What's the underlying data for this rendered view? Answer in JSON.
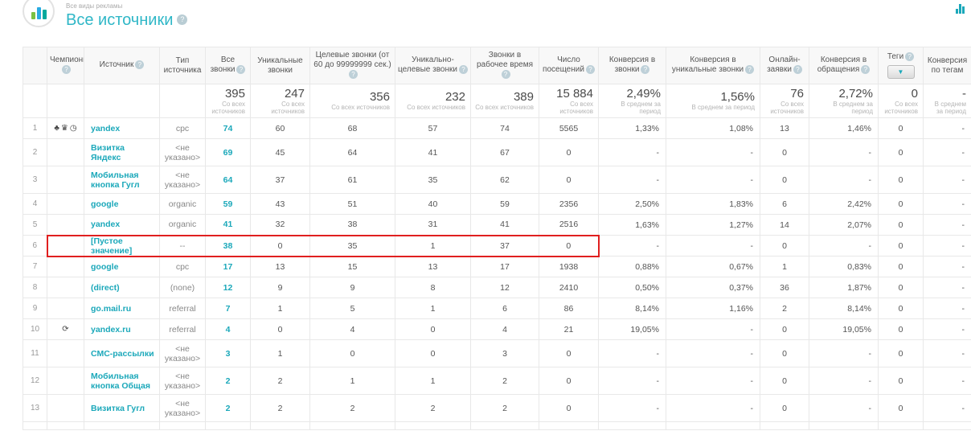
{
  "colors": {
    "accent": "#1ba8ba",
    "title": "#2fb7c7",
    "highlight": "#e01f1f"
  },
  "header": {
    "breadcrumb": "Все виды рекламы",
    "title": "Все источники"
  },
  "table": {
    "columns": [
      {
        "key": "champions",
        "label": "Чемпионы",
        "help": true
      },
      {
        "key": "source",
        "label": "Источник",
        "help": true
      },
      {
        "key": "source_type",
        "label": "Тип источника",
        "help": false
      },
      {
        "key": "all_calls",
        "label": "Все звонки",
        "help": true
      },
      {
        "key": "unique_calls",
        "label": "Уникальные звонки",
        "help": false
      },
      {
        "key": "target_calls",
        "label": "Целевые звонки (от 60 до 99999999 сек.)",
        "help": true
      },
      {
        "key": "unique_target_calls",
        "label": "Уникально-целевые звонки",
        "help": true
      },
      {
        "key": "worktime_calls",
        "label": "Звонки в рабочее время",
        "help": true
      },
      {
        "key": "visits",
        "label": "Число посещений",
        "help": true
      },
      {
        "key": "conv_calls",
        "label": "Конверсия в звонки",
        "help": true
      },
      {
        "key": "conv_unique_calls",
        "label": "Конверсия в уникальные звонки",
        "help": true
      },
      {
        "key": "online_requests",
        "label": "Онлайн-заявки",
        "help": true
      },
      {
        "key": "conv_requests",
        "label": "Конверсия в обращения",
        "help": true
      },
      {
        "key": "tags",
        "label": "Теги",
        "help": true,
        "dropdown": true
      },
      {
        "key": "conv_tags",
        "label": "Конверсия по тегам",
        "help": false
      }
    ],
    "totals": [
      {
        "value": "395",
        "sub": "Со всех источников"
      },
      {
        "value": "247",
        "sub": "Со всех источников"
      },
      {
        "value": "356",
        "sub": "Со всех источников"
      },
      {
        "value": "232",
        "sub": "Со всех источников"
      },
      {
        "value": "389",
        "sub": "Со всех источников"
      },
      {
        "value": "15 884",
        "sub": "Со всех источников"
      },
      {
        "value": "2,49%",
        "sub": "В среднем за период"
      },
      {
        "value": "1,56%",
        "sub": "В среднем за период"
      },
      {
        "value": "76",
        "sub": "Со всех источников"
      },
      {
        "value": "2,72%",
        "sub": "В среднем за период"
      },
      {
        "value": "0",
        "sub": "Со всех источников"
      },
      {
        "value": "-",
        "sub": "В среднем за период"
      }
    ],
    "rows": [
      {
        "num": "1",
        "icons": [
          {
            "name": "club-icon",
            "glyph": "♣"
          },
          {
            "name": "crown-icon",
            "glyph": "♛"
          },
          {
            "name": "clock-icon",
            "glyph": "◷"
          }
        ],
        "source": "yandex",
        "type": "cpc",
        "tall": false,
        "highlighted": false,
        "values": {
          "all_calls": "74",
          "unique_calls": "60",
          "target_calls": "68",
          "unique_target_calls": "57",
          "worktime_calls": "74",
          "visits": "5565",
          "conv_calls": "1,33%",
          "conv_unique_calls": "1,08%",
          "online_requests": "13",
          "conv_requests": "1,46%",
          "tags": "0",
          "conv_tags": "-"
        }
      },
      {
        "num": "2",
        "icons": [],
        "source": "Визитка Яндекс",
        "type": "<не указано>",
        "tall": true,
        "highlighted": false,
        "values": {
          "all_calls": "69",
          "unique_calls": "45",
          "target_calls": "64",
          "unique_target_calls": "41",
          "worktime_calls": "67",
          "visits": "0",
          "conv_calls": "-",
          "conv_unique_calls": "-",
          "online_requests": "0",
          "conv_requests": "-",
          "tags": "0",
          "conv_tags": "-"
        }
      },
      {
        "num": "3",
        "icons": [],
        "source": "Мобильная кнопка Гугл",
        "type": "<не указано>",
        "tall": true,
        "highlighted": false,
        "values": {
          "all_calls": "64",
          "unique_calls": "37",
          "target_calls": "61",
          "unique_target_calls": "35",
          "worktime_calls": "62",
          "visits": "0",
          "conv_calls": "-",
          "conv_unique_calls": "-",
          "online_requests": "0",
          "conv_requests": "-",
          "tags": "0",
          "conv_tags": "-"
        }
      },
      {
        "num": "4",
        "icons": [],
        "source": "google",
        "type": "organic",
        "tall": false,
        "highlighted": false,
        "values": {
          "all_calls": "59",
          "unique_calls": "43",
          "target_calls": "51",
          "unique_target_calls": "40",
          "worktime_calls": "59",
          "visits": "2356",
          "conv_calls": "2,50%",
          "conv_unique_calls": "1,83%",
          "online_requests": "6",
          "conv_requests": "2,42%",
          "tags": "0",
          "conv_tags": "-"
        }
      },
      {
        "num": "5",
        "icons": [],
        "source": "yandex",
        "type": "organic",
        "tall": false,
        "highlighted": false,
        "values": {
          "all_calls": "41",
          "unique_calls": "32",
          "target_calls": "38",
          "unique_target_calls": "31",
          "worktime_calls": "41",
          "visits": "2516",
          "conv_calls": "1,63%",
          "conv_unique_calls": "1,27%",
          "online_requests": "14",
          "conv_requests": "2,07%",
          "tags": "0",
          "conv_tags": "-"
        }
      },
      {
        "num": "6",
        "icons": [],
        "source": "[Пустое значение]",
        "type": "--",
        "tall": false,
        "highlighted": true,
        "values": {
          "all_calls": "38",
          "unique_calls": "0",
          "target_calls": "35",
          "unique_target_calls": "1",
          "worktime_calls": "37",
          "visits": "0",
          "conv_calls": "-",
          "conv_unique_calls": "-",
          "online_requests": "0",
          "conv_requests": "-",
          "tags": "0",
          "conv_tags": "-"
        }
      },
      {
        "num": "7",
        "icons": [],
        "source": "google",
        "type": "cpc",
        "tall": false,
        "highlighted": false,
        "values": {
          "all_calls": "17",
          "unique_calls": "13",
          "target_calls": "15",
          "unique_target_calls": "13",
          "worktime_calls": "17",
          "visits": "1938",
          "conv_calls": "0,88%",
          "conv_unique_calls": "0,67%",
          "online_requests": "1",
          "conv_requests": "0,83%",
          "tags": "0",
          "conv_tags": "-"
        }
      },
      {
        "num": "8",
        "icons": [],
        "source": "(direct)",
        "type": "(none)",
        "tall": false,
        "highlighted": false,
        "values": {
          "all_calls": "12",
          "unique_calls": "9",
          "target_calls": "9",
          "unique_target_calls": "8",
          "worktime_calls": "12",
          "visits": "2410",
          "conv_calls": "0,50%",
          "conv_unique_calls": "0,37%",
          "online_requests": "36",
          "conv_requests": "1,87%",
          "tags": "0",
          "conv_tags": "-"
        }
      },
      {
        "num": "9",
        "icons": [],
        "source": "go.mail.ru",
        "type": "referral",
        "tall": false,
        "highlighted": false,
        "values": {
          "all_calls": "7",
          "unique_calls": "1",
          "target_calls": "5",
          "unique_target_calls": "1",
          "worktime_calls": "6",
          "visits": "86",
          "conv_calls": "8,14%",
          "conv_unique_calls": "1,16%",
          "online_requests": "2",
          "conv_requests": "8,14%",
          "tags": "0",
          "conv_tags": "-"
        }
      },
      {
        "num": "10",
        "icons": [
          {
            "name": "refresh-icon",
            "glyph": "⟳"
          }
        ],
        "source": "yandex.ru",
        "type": "referral",
        "tall": false,
        "highlighted": false,
        "values": {
          "all_calls": "4",
          "unique_calls": "0",
          "target_calls": "4",
          "unique_target_calls": "0",
          "worktime_calls": "4",
          "visits": "21",
          "conv_calls": "19,05%",
          "conv_unique_calls": "-",
          "online_requests": "0",
          "conv_requests": "19,05%",
          "tags": "0",
          "conv_tags": "-"
        }
      },
      {
        "num": "11",
        "icons": [],
        "source": "СМС-рассылки",
        "type": "<не указано>",
        "tall": true,
        "highlighted": false,
        "values": {
          "all_calls": "3",
          "unique_calls": "1",
          "target_calls": "0",
          "unique_target_calls": "0",
          "worktime_calls": "3",
          "visits": "0",
          "conv_calls": "-",
          "conv_unique_calls": "-",
          "online_requests": "0",
          "conv_requests": "-",
          "tags": "0",
          "conv_tags": "-"
        }
      },
      {
        "num": "12",
        "icons": [],
        "source": "Мобильная кнопка Общая",
        "type": "<не указано>",
        "tall": true,
        "highlighted": false,
        "values": {
          "all_calls": "2",
          "unique_calls": "2",
          "target_calls": "1",
          "unique_target_calls": "1",
          "worktime_calls": "2",
          "visits": "0",
          "conv_calls": "-",
          "conv_unique_calls": "-",
          "online_requests": "0",
          "conv_requests": "-",
          "tags": "0",
          "conv_tags": "-"
        }
      },
      {
        "num": "13",
        "icons": [],
        "source": "Визитка Гугл",
        "type": "<не указано>",
        "tall": true,
        "highlighted": false,
        "values": {
          "all_calls": "2",
          "unique_calls": "2",
          "target_calls": "2",
          "unique_target_calls": "2",
          "worktime_calls": "2",
          "visits": "0",
          "conv_calls": "-",
          "conv_unique_calls": "-",
          "online_requests": "0",
          "conv_requests": "-",
          "tags": "0",
          "conv_tags": "-"
        }
      }
    ]
  }
}
